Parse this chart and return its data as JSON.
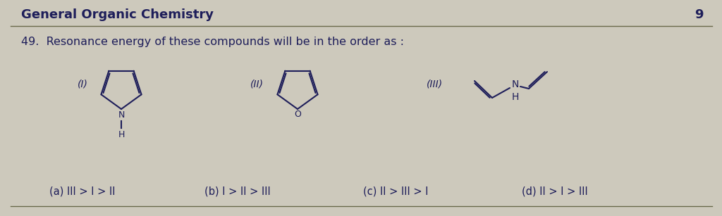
{
  "bg_color": "#cdc9bc",
  "header_text": "General Organic Chemistry",
  "page_number": "9",
  "question": "49.  Resonance energy of these compounds will be in the order as :",
  "compound_I_label": "(I)",
  "compound_II_label": "(II)",
  "compound_III_label": "(III)",
  "options": [
    "(a) III > I > II",
    "(b) I > II > III",
    "(c) II > III > I",
    "(d) II > I > III"
  ],
  "text_color": "#1e1e5a",
  "line_color": "#5a5a5a",
  "header_fontsize": 13,
  "question_fontsize": 11.5,
  "option_fontsize": 10.5,
  "label_fontsize": 10,
  "struct_color": "#1e1e5a"
}
